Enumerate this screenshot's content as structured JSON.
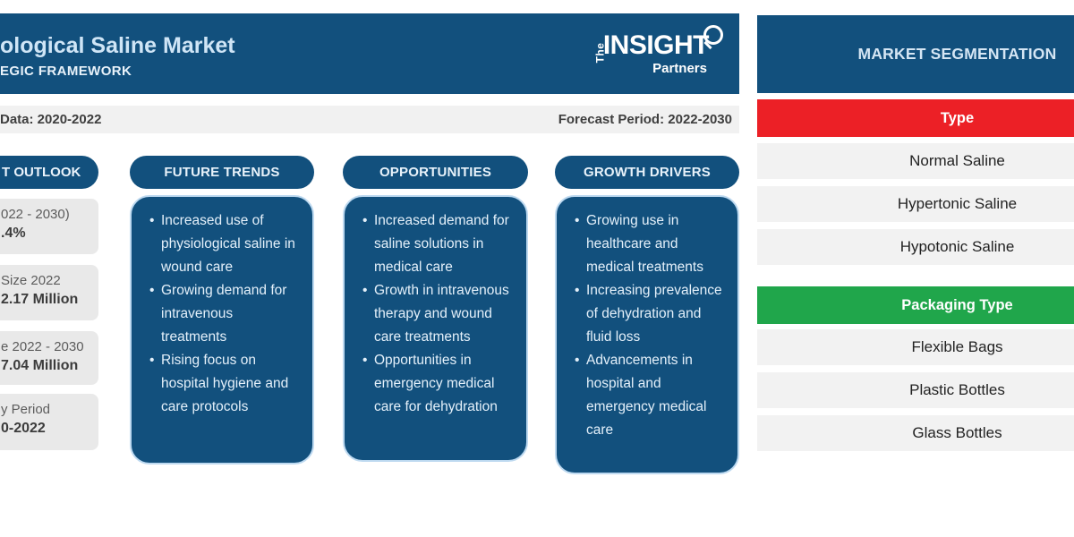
{
  "colors": {
    "primary_blue": "#12507D",
    "light_blue_text": "#D5E6F4",
    "red": "#EC2026",
    "green": "#20A64B",
    "row_gray": "#F2F2F2",
    "card_gray": "#E9E9E9"
  },
  "header": {
    "title_fragment": "ological Saline Market",
    "subtitle_fragment": "EGIC FRAMEWORK",
    "logo": {
      "the": "The",
      "insight": "INSIGHT",
      "partners": "Partners"
    }
  },
  "period_bar": {
    "historical_fragment": "Data: 2020-2022",
    "forecast": "Forecast Period: 2022-2030"
  },
  "outlook": {
    "header_fragment": "T OUTLOOK",
    "cards": [
      {
        "line1": "022 - 2030)",
        "line2": ".4%"
      },
      {
        "line1": "Size 2022",
        "line2": "2.17 Million"
      },
      {
        "line1": "e 2022 - 2030",
        "line2": "7.04 Million"
      },
      {
        "line1": "y Period",
        "line2": "0-2022"
      }
    ]
  },
  "columns": [
    {
      "title": "FUTURE TRENDS",
      "bullets": [
        "Increased use of physiological saline in wound care",
        "Growing demand for intravenous treatments",
        "Rising focus on hospital hygiene and care protocols"
      ]
    },
    {
      "title": "OPPORTUNITIES",
      "bullets": [
        "Increased demand for saline solutions in medical care",
        "Growth in intravenous therapy and wound care treatments",
        "Opportunities in emergency medical care for dehydration"
      ]
    },
    {
      "title": "GROWTH DRIVERS",
      "bullets": [
        "Growing use in healthcare and medical treatments",
        "Increasing prevalence of dehydration and fluid loss",
        "Advancements in hospital and emergency medical care"
      ]
    }
  ],
  "segmentation": {
    "title": "MARKET SEGMENTATION",
    "groups": [
      {
        "label": "Type",
        "color": "#EC2026",
        "items": [
          "Normal Saline",
          "Hypertonic Saline",
          "Hypotonic Saline"
        ]
      },
      {
        "label": "Packaging Type",
        "color": "#20A64B",
        "items": [
          "Flexible Bags",
          "Plastic Bottles",
          "Glass Bottles"
        ]
      }
    ]
  }
}
